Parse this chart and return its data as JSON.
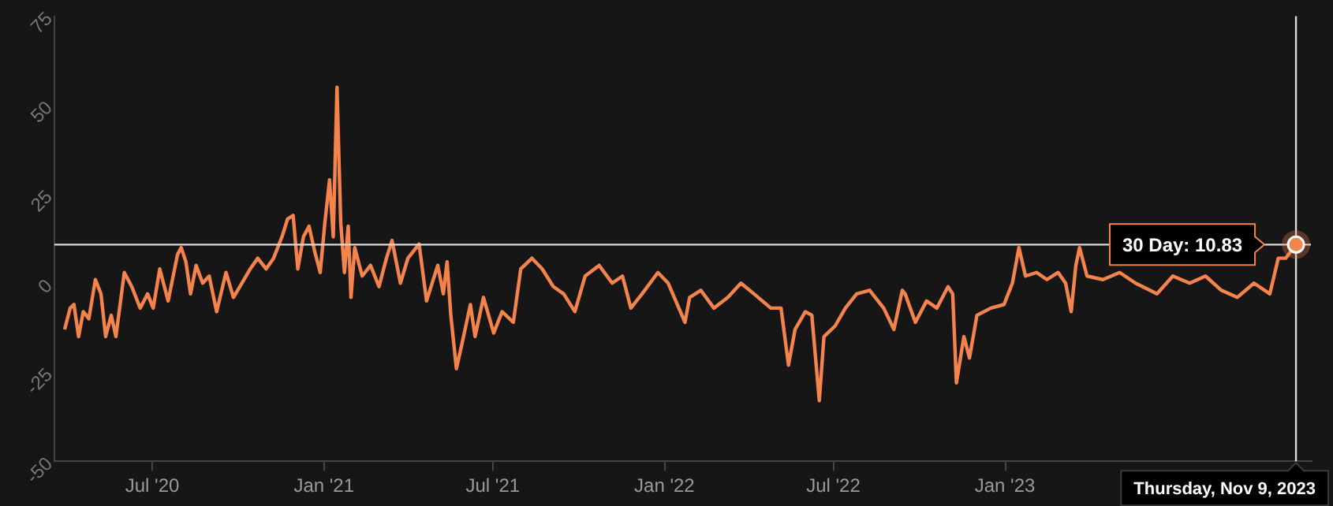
{
  "chart_data": {
    "type": "line",
    "x": [
      "2020-03-29",
      "2020-04-04",
      "2020-04-08",
      "2020-04-13",
      "2020-04-18",
      "2020-04-24",
      "2020-05-01",
      "2020-05-07",
      "2020-05-12",
      "2020-05-18",
      "2020-05-23",
      "2020-06-01",
      "2020-06-09",
      "2020-06-18",
      "2020-06-26",
      "2020-07-02",
      "2020-07-09",
      "2020-07-18",
      "2020-07-28",
      "2020-08-01",
      "2020-08-06",
      "2020-08-11",
      "2020-08-17",
      "2020-08-24",
      "2020-08-31",
      "2020-09-08",
      "2020-09-18",
      "2020-09-26",
      "2020-10-05",
      "2020-10-14",
      "2020-10-22",
      "2020-10-31",
      "2020-11-08",
      "2020-11-17",
      "2020-11-23",
      "2020-11-29",
      "2020-12-04",
      "2020-12-10",
      "2020-12-16",
      "2020-12-22",
      "2020-12-28",
      "2021-01-02",
      "2021-01-07",
      "2021-01-11",
      "2021-01-15",
      "2021-01-19",
      "2021-01-23",
      "2021-01-27",
      "2021-01-30",
      "2021-02-03",
      "2021-02-11",
      "2021-02-20",
      "2021-03-01",
      "2021-03-09",
      "2021-03-15",
      "2021-03-24",
      "2021-04-01",
      "2021-04-13",
      "2021-04-21",
      "2021-05-03",
      "2021-05-09",
      "2021-05-13",
      "2021-05-17",
      "2021-05-23",
      "2021-05-29",
      "2021-06-07",
      "2021-06-12",
      "2021-06-21",
      "2021-07-02",
      "2021-07-11",
      "2021-07-23",
      "2021-07-31",
      "2021-08-12",
      "2021-08-23",
      "2021-09-04",
      "2021-09-15",
      "2021-09-27",
      "2021-10-08",
      "2021-10-23",
      "2021-11-06",
      "2021-11-17",
      "2021-11-26",
      "2021-12-08",
      "2021-12-25",
      "2022-01-05",
      "2022-01-23",
      "2022-01-28",
      "2022-02-09",
      "2022-02-23",
      "2022-03-10",
      "2022-03-24",
      "2022-04-07",
      "2022-04-25",
      "2022-05-06",
      "2022-05-14",
      "2022-05-21",
      "2022-06-01",
      "2022-06-08",
      "2022-06-16",
      "2022-06-21",
      "2022-07-03",
      "2022-07-14",
      "2022-07-26",
      "2022-08-09",
      "2022-08-24",
      "2022-09-04",
      "2022-09-13",
      "2022-09-16",
      "2022-09-27",
      "2022-10-09",
      "2022-10-20",
      "2022-11-01",
      "2022-11-06",
      "2022-11-10",
      "2022-11-18",
      "2022-11-24",
      "2022-12-02",
      "2022-12-17",
      "2022-12-31",
      "2023-01-09",
      "2023-01-16",
      "2023-01-23",
      "2023-02-04",
      "2023-02-15",
      "2023-02-27",
      "2023-03-07",
      "2023-03-13",
      "2023-03-18",
      "2023-03-22",
      "2023-03-30",
      "2023-04-16",
      "2023-05-04",
      "2023-05-21",
      "2023-06-13",
      "2023-06-30",
      "2023-07-18",
      "2023-08-04",
      "2023-08-21",
      "2023-09-07",
      "2023-09-25",
      "2023-10-12",
      "2023-10-21",
      "2023-10-29",
      "2023-11-09"
    ],
    "series": [
      {
        "color": "#f5844c",
        "values": [
          -13,
          -7,
          -6,
          -15,
          -8,
          -10,
          1,
          -3,
          -15,
          -9,
          -15,
          3,
          -1,
          -7,
          -3,
          -7,
          4,
          -5,
          8,
          10,
          6,
          -3,
          5,
          0,
          2,
          -8,
          3,
          -4,
          0,
          4,
          7,
          4,
          7,
          13,
          18,
          19,
          4,
          13,
          16,
          9,
          3,
          17,
          29,
          13,
          55,
          17,
          3,
          16,
          -4,
          10,
          2,
          5,
          -1,
          7,
          12,
          0,
          7,
          11,
          -5,
          5,
          -3,
          6,
          -9,
          -24,
          -17,
          -6,
          -15,
          -4,
          -14,
          -8,
          -11,
          4,
          7,
          4,
          -1,
          -3,
          -8,
          2,
          5,
          0,
          2,
          -7,
          -3,
          3,
          0,
          -11,
          -4,
          -2,
          -7,
          -4,
          0,
          -3,
          -7,
          -7,
          -23,
          -13,
          -8,
          -9,
          -33,
          -15,
          -12,
          -7,
          -3,
          -2,
          -7,
          -13,
          -2,
          -3,
          -11,
          -5,
          -7,
          -1,
          -3,
          -28,
          -15,
          -21,
          -9,
          -7,
          -6,
          0,
          10,
          2,
          3,
          1,
          3,
          0,
          -8,
          5,
          10,
          2,
          1,
          3,
          0,
          -3,
          2,
          0,
          2,
          -2,
          -4,
          0,
          -3,
          7,
          7,
          10.83
        ]
      }
    ],
    "xlim": [
      "2020-03-18",
      "2023-11-25"
    ],
    "xticks": [
      {
        "value": "2020-07-01",
        "label": "Jul '20"
      },
      {
        "value": "2021-01-01",
        "label": "Jan '21"
      },
      {
        "value": "2021-07-01",
        "label": "Jul '21"
      },
      {
        "value": "2022-01-01",
        "label": "Jan '22"
      },
      {
        "value": "2022-07-01",
        "label": "Jul '22"
      },
      {
        "value": "2023-01-01",
        "label": "Jan '23"
      }
    ],
    "ylim": [
      -50,
      75
    ],
    "yticks": [
      -50,
      -25,
      0,
      25,
      50,
      75
    ],
    "grid": false,
    "legend": false,
    "marker": "none",
    "line_style": "solid",
    "ref_lines": [
      {
        "axis": "y",
        "value": 10.83,
        "color": "#d9d9d9"
      },
      {
        "axis": "x",
        "value": "2023-11-09",
        "label": "Thursday, Nov 9, 2023",
        "color": "#d9d9d9"
      }
    ],
    "annotations": [
      {
        "text": "30 Day: 10.83",
        "x": "2023-11-09",
        "y": 10.83
      }
    ]
  }
}
